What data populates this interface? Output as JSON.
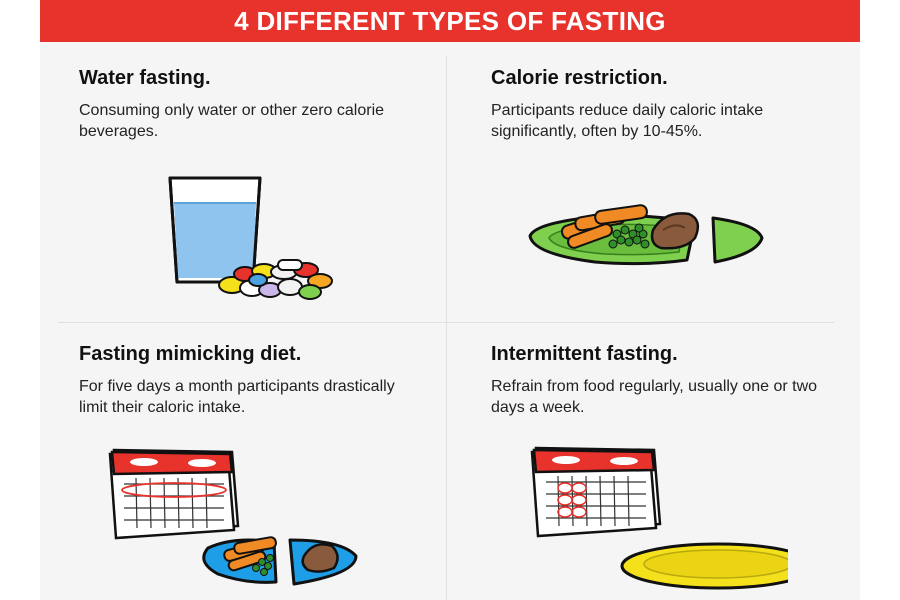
{
  "header": {
    "title": "4 DIFFERENT TYPES OF FASTING"
  },
  "colors": {
    "banner": "#e8322c",
    "water": "#8fc4ee",
    "plate_green": "#7ed04e",
    "plate_blue": "#1e9ee6",
    "plate_yellow": "#f5e01c",
    "calendar_red": "#e8322c"
  },
  "items": [
    {
      "title": "Water fasting.",
      "text": "Consuming only water or other zero calorie beverages.",
      "illustration": "water-glass-pills"
    },
    {
      "title": "Calorie restriction.",
      "text": "Participants reduce daily caloric intake significantly, often by 10-45%.",
      "illustration": "green-plate-food"
    },
    {
      "title": "Fasting mimicking diet.",
      "text": "For five days a month participants drastically limit their caloric intake.",
      "illustration": "calendar-blue-plate"
    },
    {
      "title": "Intermittent fasting.",
      "text": "Refrain from food regularly, usually one or two days a week.",
      "illustration": "calendar-empty-plate"
    }
  ]
}
